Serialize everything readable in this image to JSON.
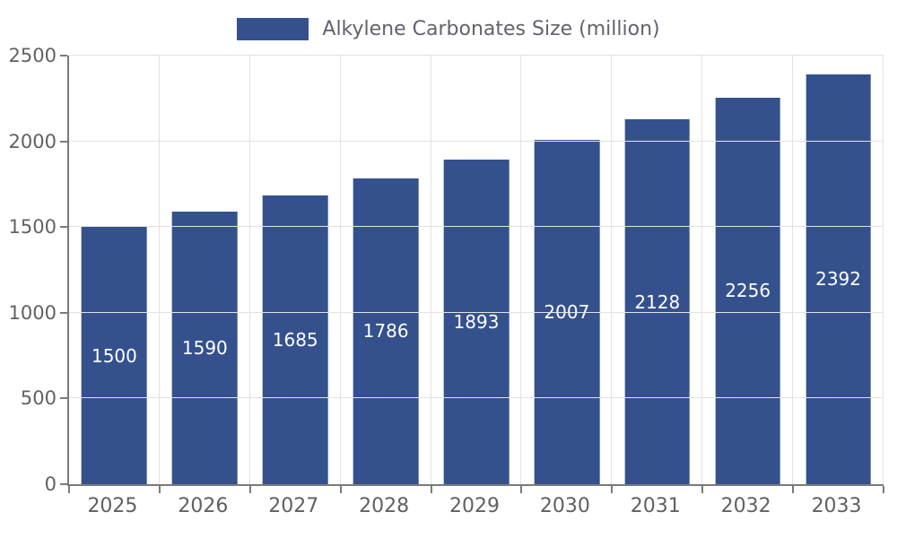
{
  "chart_data": {
    "type": "bar",
    "title": "Alkylene Carbonates Size (million)",
    "categories": [
      "2025",
      "2026",
      "2027",
      "2028",
      "2029",
      "2030",
      "2031",
      "2032",
      "2033"
    ],
    "values": [
      1500,
      1590,
      1685,
      1786,
      1893,
      2007,
      2128,
      2256,
      2392
    ],
    "xlabel": "",
    "ylabel": "",
    "ylim": [
      0,
      2500
    ],
    "yticks": [
      0,
      500,
      1000,
      1500,
      2000,
      2500
    ],
    "grid": true,
    "legend_position": "top",
    "colors": {
      "bar": "#34518e",
      "bar_label": "#ffffff",
      "axis": "#7a7a7a",
      "gridline": "#e2e2e2",
      "tick_label": "#616161",
      "legend_text": "#62626e"
    }
  }
}
